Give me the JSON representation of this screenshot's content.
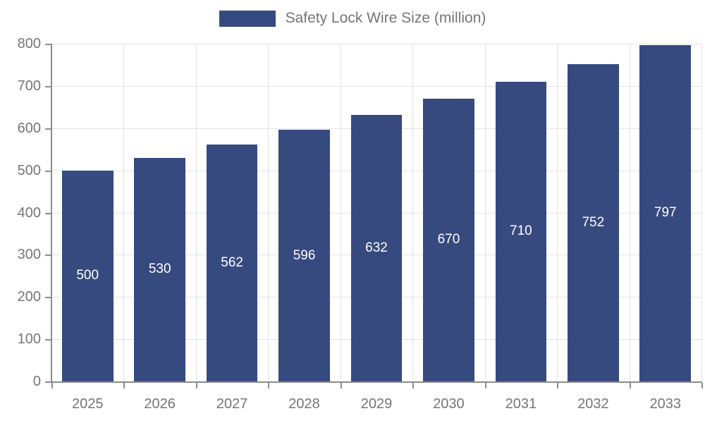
{
  "legend": {
    "label": "Safety Lock Wire Size (million)"
  },
  "colors": {
    "bar": "#374a7f",
    "grid": "#e3e3e3",
    "axis": "#8c8c8c",
    "tick_text": "#757575",
    "value_label": "#ffffff"
  },
  "chart_data": {
    "type": "bar",
    "categories": [
      "2025",
      "2026",
      "2027",
      "2028",
      "2029",
      "2030",
      "2031",
      "2032",
      "2033"
    ],
    "values": [
      500,
      530,
      562,
      596,
      632,
      670,
      710,
      752,
      797
    ],
    "title": "",
    "xlabel": "",
    "ylabel": "",
    "ylim": [
      0,
      800
    ],
    "ytick_step": 100,
    "grid": true,
    "legend_entries": [
      "Safety Lock Wire Size (million)"
    ],
    "legend_position": "top-center",
    "bar_labels_inside": true
  }
}
